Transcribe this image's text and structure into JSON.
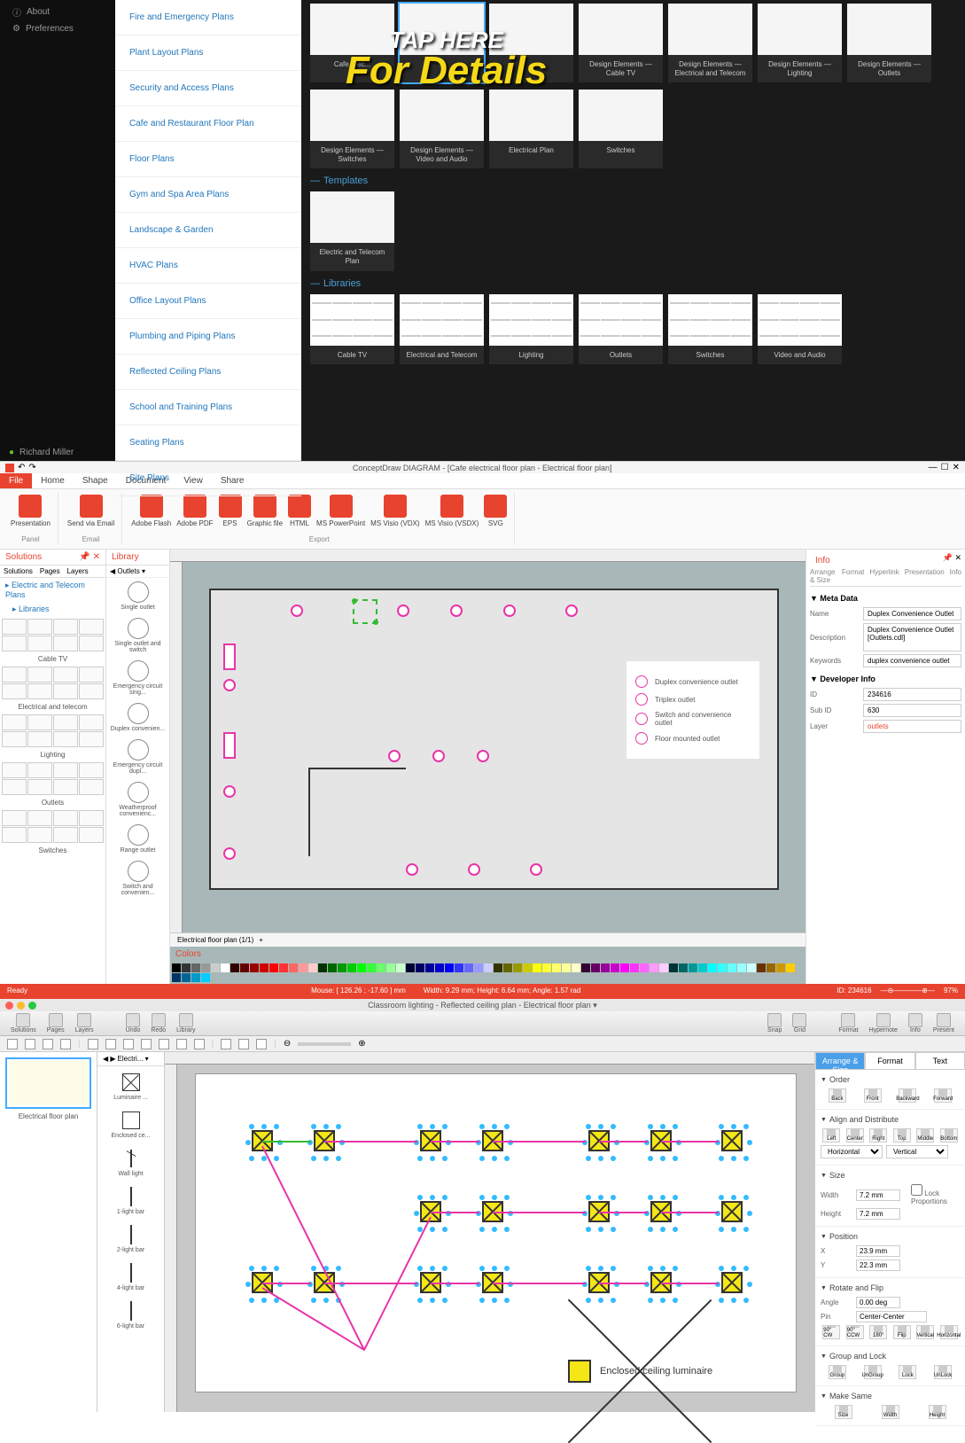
{
  "s1": {
    "sideItems": [
      "About",
      "Preferences"
    ],
    "user": "Richard Miller",
    "listItems": [
      "Fire and Emergency Plans",
      "Plant Layout Plans",
      "Security and Access Plans",
      "Cafe and Restaurant Floor Plan",
      "Floor Plans",
      "Gym and Spa Area Plans",
      "Landscape & Garden",
      "HVAC Plans",
      "Office Layout Plans",
      "Plumbing and Piping Plans",
      "Reflected Ceiling Plans",
      "School and Training Plans",
      "Seating Plans",
      "Site Plans"
    ],
    "row1": [
      "Cafe Elec...",
      "...",
      "...",
      "Design Elements — Cable TV",
      "Design Elements — Electrical and Telecom",
      "Design Elements — Lighting",
      "Design Elements — Outlets"
    ],
    "row2": [
      "Design Elements — Switches",
      "Design Elements — Video and Audio",
      "Electrical Plan",
      "Switches"
    ],
    "templates_h": "Templates",
    "templates": [
      "Electric and Telecom Plan"
    ],
    "libraries_h": "Libraries",
    "libs": [
      "Cable TV",
      "Electrical and Telecom",
      "Lighting",
      "Outlets",
      "Switches",
      "Video and Audio"
    ],
    "overlay1": "TAP HERE",
    "overlay2": "For Details"
  },
  "s2": {
    "title": "ConceptDraw DIAGRAM - [Cafe electrical floor plan - Electrical floor plan]",
    "tabs": [
      "File",
      "Home",
      "Shape",
      "Document",
      "View",
      "Share"
    ],
    "ribbon": [
      {
        "items": [
          "Presentation"
        ],
        "label": "Panel"
      },
      {
        "items": [
          "Send via Email"
        ],
        "label": "Email"
      },
      {
        "items": [
          "Adobe Flash",
          "Adobe PDF",
          "EPS",
          "Graphic file",
          "HTML",
          "MS PowerPoint",
          "MS Visio (VDX)",
          "MS Visio (VSDX)",
          "SVG"
        ],
        "label": "Export"
      }
    ],
    "solutions_h": "Solutions",
    "sol_tabs": [
      "Solutions",
      "Pages",
      "Layers"
    ],
    "sol_root": "Electric and Telecom Plans",
    "sol_sub": "Libraries",
    "sol_groups": [
      "Cable TV",
      "Electrical and telecom",
      "Lighting",
      "Outlets",
      "Switches"
    ],
    "library_h": "Library",
    "lib_sel": "Outlets ▾",
    "lib_items": [
      "Single outlet",
      "Single outlet and switch",
      "Emergency circuit sing...",
      "Duplex convenien...",
      "Emergency circuit dupl...",
      "Weatherproof convenienc...",
      "Range outlet",
      "Switch and convenien..."
    ],
    "legend": [
      "Duplex convenience outlet",
      "Triplex outlet",
      "Switch and convenience outlet",
      "Floor mounted outlet"
    ],
    "page_tab": "Electrical floor plan (1/1)",
    "colors_h": "Colors",
    "palette": [
      "#000",
      "#333",
      "#666",
      "#999",
      "#ccc",
      "#fff",
      "#300",
      "#600",
      "#900",
      "#c00",
      "#f00",
      "#f33",
      "#f66",
      "#f99",
      "#fcc",
      "#030",
      "#060",
      "#090",
      "#0c0",
      "#0f0",
      "#3f3",
      "#6f6",
      "#9f9",
      "#cfc",
      "#003",
      "#006",
      "#009",
      "#00c",
      "#00f",
      "#33f",
      "#66f",
      "#99f",
      "#ccf",
      "#330",
      "#660",
      "#990",
      "#cc0",
      "#ff0",
      "#ff3",
      "#ff6",
      "#ff9",
      "#ffc",
      "#303",
      "#606",
      "#909",
      "#c0c",
      "#f0f",
      "#f3f",
      "#f6f",
      "#f9f",
      "#fcf",
      "#033",
      "#066",
      "#099",
      "#0cc",
      "#0ff",
      "#3ff",
      "#6ff",
      "#9ff",
      "#cff",
      "#630",
      "#960",
      "#c90",
      "#fc0",
      "#036",
      "#069",
      "#09c",
      "#0cf"
    ],
    "info_h": "Info",
    "info_tabs": [
      "Arrange & Size",
      "Format",
      "Hyperlink",
      "Presentation",
      "Info"
    ],
    "meta_h": "Meta Data",
    "meta": {
      "Name": "Duplex Convenience Outlet",
      "Description": "Duplex Convenience Outlet [Outlets.cdl]",
      "Keywords": "duplex convenience outlet"
    },
    "dev_h": "Developer Info",
    "dev": {
      "ID": "234616",
      "Sub ID": "630",
      "Layer": "outlets"
    },
    "status": {
      "ready": "Ready",
      "mouse": "Mouse: [ 126.26 ; -17.60 ] mm",
      "size": "Width: 9.29 mm;  Height: 6.64 mm;  Angle: 1.57 rad",
      "id": "ID: 234616",
      "zoom": "97%"
    }
  },
  "s3": {
    "title": "Classroom lighting - Reflected ceiling plan - Electrical floor plan ▾",
    "toolbar": [
      "Solutions",
      "Pages",
      "Layers",
      "",
      "Undo",
      "Redo",
      "Library",
      "",
      "",
      "Snap",
      "Grid",
      "",
      "Format",
      "Hypernote",
      "Info",
      "Present"
    ],
    "page_name": "Electrical floor plan",
    "lib_sel": "Electri... ▾",
    "lib_items": [
      "Luminaire ...",
      "Enclosed ce...",
      "Wall light",
      "1-light bar",
      "2-light bar",
      "4-light bar",
      "6-light bar"
    ],
    "legend": "Enclosed ceiling luminaire",
    "prop_tabs": [
      "Arrange & Size",
      "Format",
      "Text"
    ],
    "order_h": "Order",
    "order_btns": [
      "Back",
      "Front",
      "Backward",
      "Forward"
    ],
    "align_h": "Align and Distribute",
    "align_btns": [
      "Left",
      "Center",
      "Right",
      "Top",
      "Middle",
      "Bottom"
    ],
    "align_sel": [
      "Horizontal",
      "Vertical"
    ],
    "size_h": "Size",
    "size": {
      "Width": "7.2 mm",
      "Height": "7.2 mm"
    },
    "lock": "Lock Proportions",
    "pos_h": "Position",
    "pos": {
      "X": "23.9 mm",
      "Y": "22.3 mm"
    },
    "rot_h": "Rotate and Flip",
    "rot": {
      "Angle": "0.00 deg",
      "Pin": "Center-Center"
    },
    "rot_btns": [
      "90° CW",
      "90° CCW",
      "180°",
      "Flip",
      "Vertical",
      "Horizontal"
    ],
    "grp_h": "Group and Lock",
    "grp_btns": [
      "Group",
      "UnGroup",
      "Lock",
      "UnLock"
    ],
    "same_h": "Make Same",
    "same_btns": [
      "Size",
      "Width",
      "Height"
    ],
    "luminaires": [
      [
        60,
        60
      ],
      [
        130,
        60
      ],
      [
        250,
        60
      ],
      [
        320,
        60
      ],
      [
        440,
        60
      ],
      [
        510,
        60
      ],
      [
        590,
        60
      ],
      [
        250,
        140
      ],
      [
        320,
        140
      ],
      [
        440,
        140
      ],
      [
        510,
        140
      ],
      [
        590,
        140
      ],
      [
        60,
        220
      ],
      [
        130,
        220
      ],
      [
        250,
        220
      ],
      [
        320,
        220
      ],
      [
        440,
        220
      ],
      [
        510,
        220
      ],
      [
        590,
        220
      ]
    ]
  }
}
